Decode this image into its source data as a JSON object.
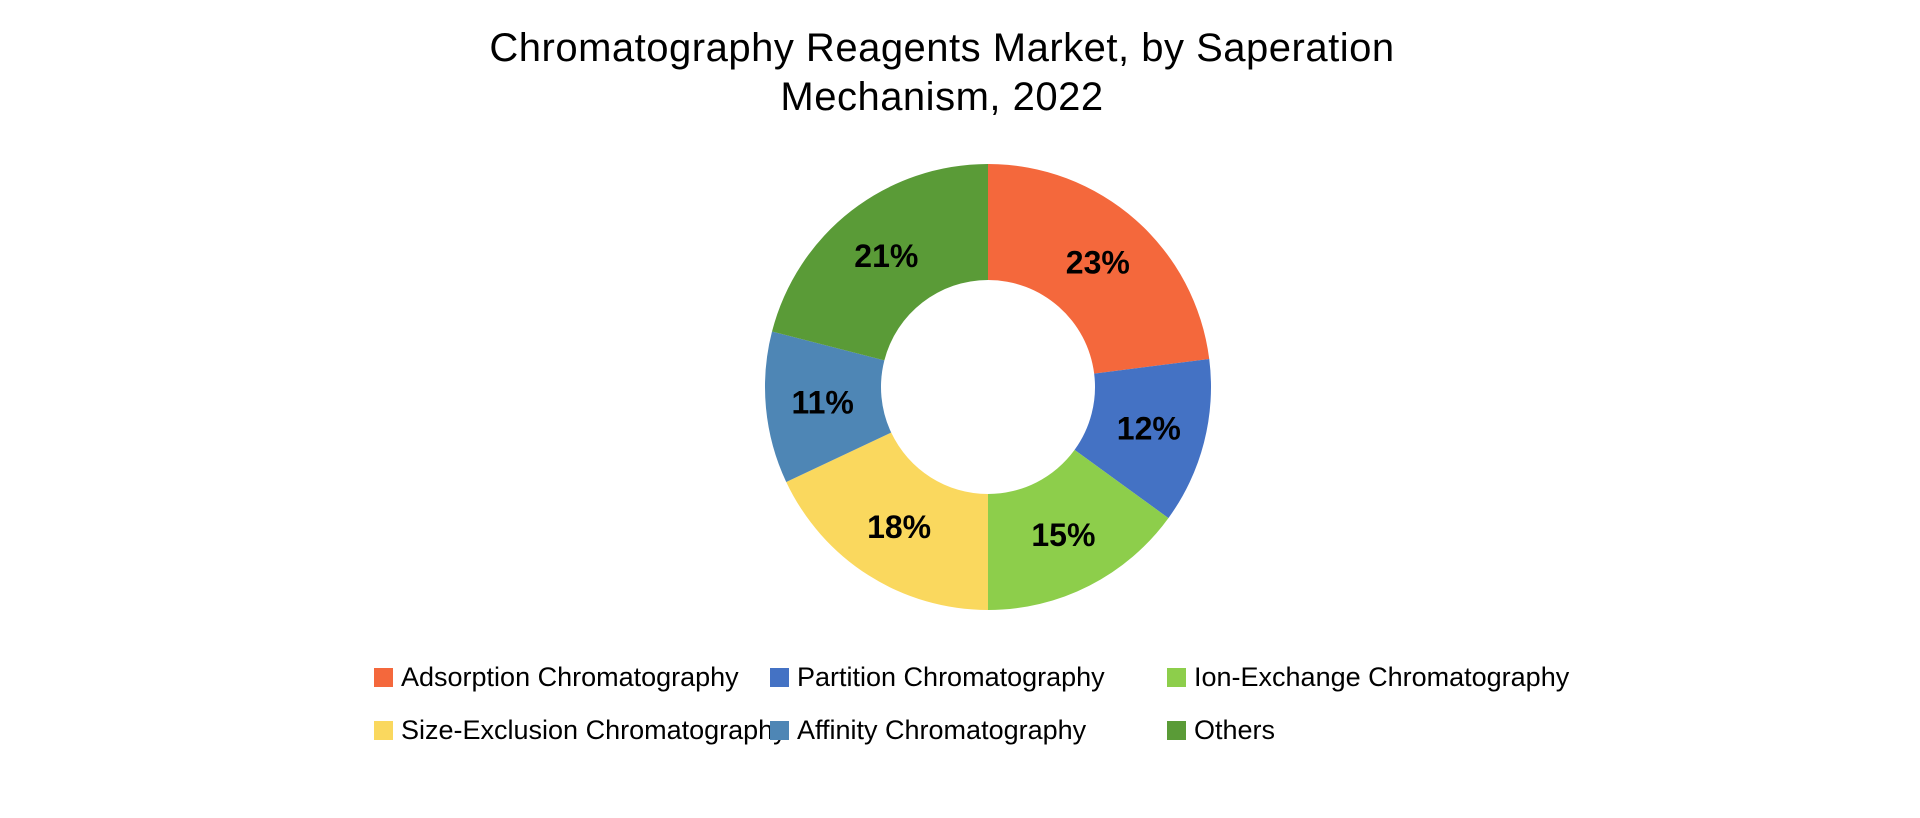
{
  "page": {
    "background_color": "#FFFFFF"
  },
  "title": {
    "text": "Chromatography Reagents Market, by Saperation Mechanism, 2022",
    "lines": [
      "Chromatography Reagents Market, by Saperation",
      "Mechanism, 2022"
    ]
  },
  "chart_data": {
    "type": "pie",
    "subtype": "donut",
    "title": "Chromatography Reagents Market, by Saperation Mechanism, 2022",
    "unit": "%",
    "categories": [
      "Adsorption Chromatography",
      "Partition Chromatography",
      "Ion-Exchange Chromatography",
      "Size-Exclusion Chromatography",
      "Affinity Chromatography",
      "Others"
    ],
    "values": [
      23,
      12,
      15,
      18,
      11,
      21
    ],
    "data_labels": [
      "23%",
      "12%",
      "15%",
      "18%",
      "11%",
      "21%"
    ],
    "colors": [
      "#F4683C",
      "#4472C4",
      "#8DCE4B",
      "#FAD85E",
      "#4E86B5",
      "#5A9B37"
    ],
    "data_label_color": "#000000",
    "start_angle_deg": 0,
    "direction": "clockwise",
    "inner_radius_ratio": 0.48,
    "grid": false,
    "legend_position": "bottom",
    "legend_columns": 3
  }
}
